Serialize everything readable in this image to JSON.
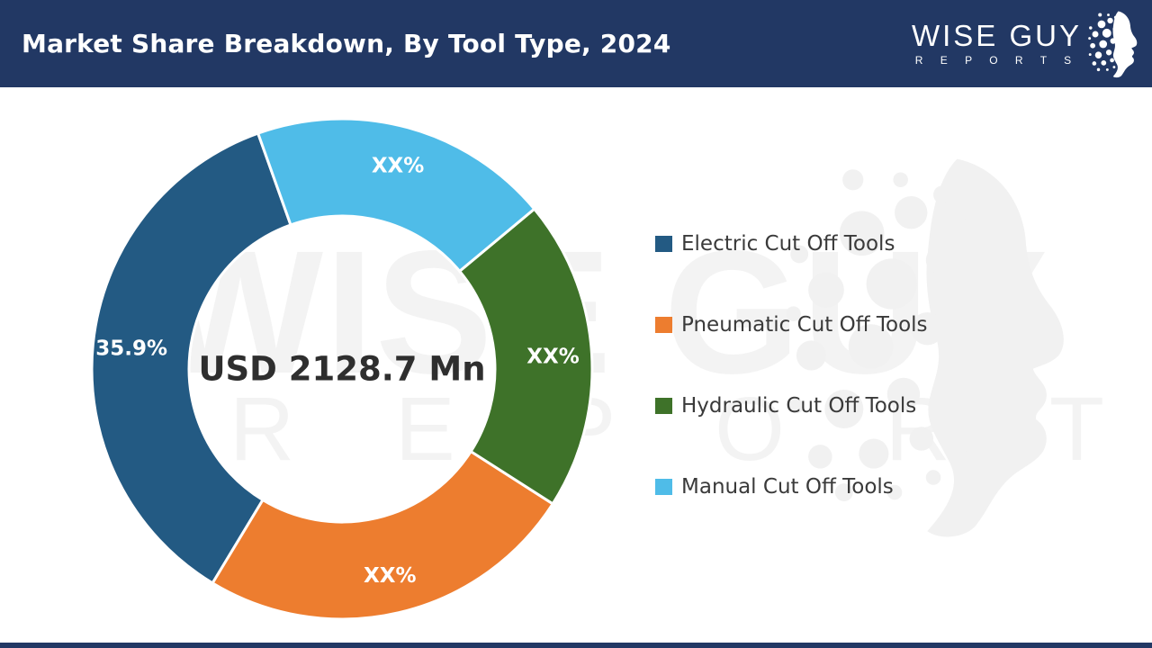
{
  "header": {
    "title": "Market Share Breakdown, By Tool Type, 2024",
    "background_color": "#223864",
    "logo": {
      "line1": "WISE GUY",
      "line2": "R E P O R T S",
      "face_icon": "wise-guy-face-icon"
    }
  },
  "chart_data": {
    "type": "pie",
    "subtype": "donut",
    "title": "Market Share Breakdown, By Tool Type, 2024",
    "center_label": "USD 2128.7 Mn",
    "legend_position": "right",
    "start_angle_deg": 109.6,
    "direction": "counterclockwise",
    "slices": [
      {
        "label": "Electric Cut Off Tools",
        "display_value": "35.9%",
        "percent": 35.9,
        "color": "#235a83"
      },
      {
        "label": "Pneumatic Cut Off Tools",
        "display_value": "XX%",
        "percent": 24.6,
        "color": "#ed7d2f"
      },
      {
        "label": "Hydraulic Cut Off Tools",
        "display_value": "XX%",
        "percent": 20.1,
        "color": "#3e7229"
      },
      {
        "label": "Manual Cut Off Tools",
        "display_value": "XX%",
        "percent": 19.4,
        "color": "#4fbce8"
      }
    ]
  },
  "watermark": {
    "line1": "WISE GUY",
    "line2": "R E P O R T S"
  },
  "footer": {
    "bar_color": "#223864"
  }
}
